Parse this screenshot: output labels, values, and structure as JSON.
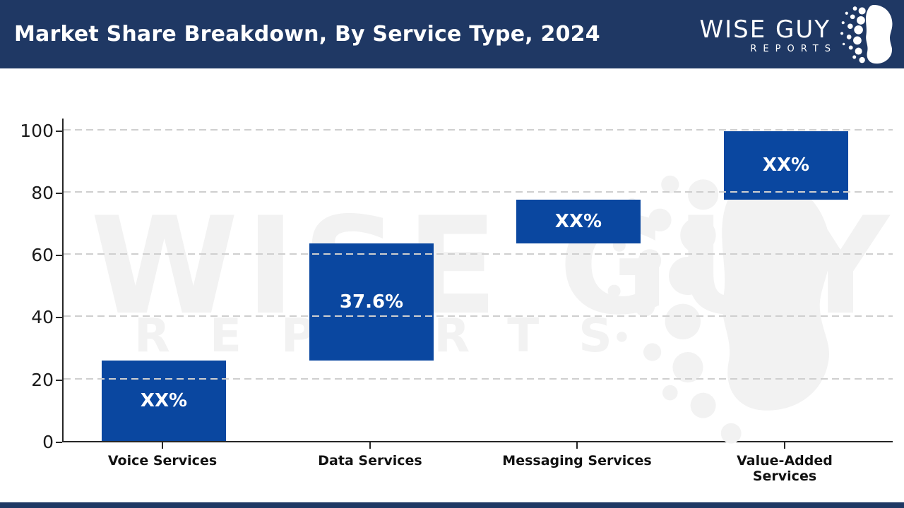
{
  "header": {
    "title": "Market Share Breakdown, By Service Type, 2024",
    "logo": {
      "line1": "WISE GUY",
      "line2": "REPORTS"
    }
  },
  "watermark": {
    "line1": "WISE GUY",
    "line2": "REPORTS"
  },
  "colors": {
    "header_bg": "#1f3864",
    "bar": "#0a47a0",
    "gridline": "#cfcfcf",
    "axis": "#262626",
    "bar_label_text": "#ffffff",
    "watermark": "#f2f2f2"
  },
  "chart_data": {
    "type": "bar",
    "subtype": "floating-segment-waterfall",
    "title": "Market Share Breakdown, By Service Type, 2024",
    "xlabel": "",
    "ylabel": "",
    "categories": [
      "Voice Services",
      "Data Services",
      "Messaging Services",
      "Value-Added Services"
    ],
    "category_lines": [
      [
        "Voice Services"
      ],
      [
        "Data Services"
      ],
      [
        "Messaging Services"
      ],
      [
        "Value-Added",
        "Services"
      ]
    ],
    "segments": [
      {
        "category": "Voice Services",
        "start": 0,
        "end": 25.8,
        "label": "XX%"
      },
      {
        "category": "Data Services",
        "start": 25.8,
        "end": 63.4,
        "label": "37.6%",
        "value": 37.6
      },
      {
        "category": "Messaging Services",
        "start": 63.4,
        "end": 77.6,
        "label": "XX%"
      },
      {
        "category": "Value-Added Services",
        "start": 77.6,
        "end": 99.5,
        "label": "XX%"
      }
    ],
    "yticks": [
      0,
      20,
      40,
      60,
      80,
      100
    ],
    "ylim": [
      0,
      104
    ],
    "grid": "dashed horizontal, drawn over bars",
    "legend": "none"
  }
}
